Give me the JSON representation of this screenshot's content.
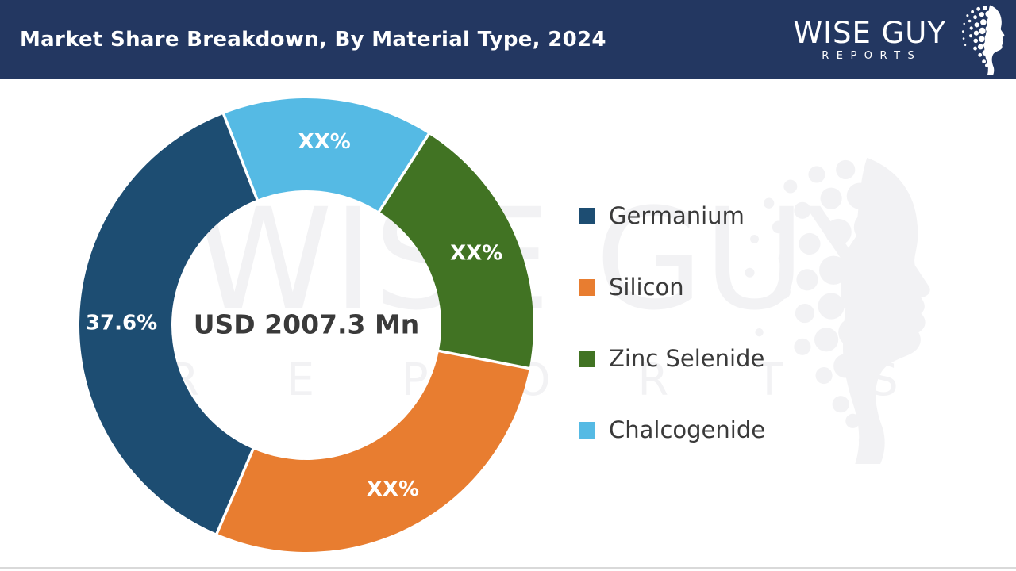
{
  "header": {
    "title": "Market Share Breakdown, By Material Type, 2024",
    "logo": {
      "wordmark": "WISE GUY",
      "subtitle": "REPORTS"
    }
  },
  "watermark": {
    "wordmark": "WISE GUY",
    "subtitle": "R E P O R T S"
  },
  "colors": {
    "header_bg": "#233761",
    "title_text": "#ffffff",
    "center_text": "#3a3a3a",
    "legend_text": "#3a3a3a",
    "watermark": "#f2f2f4",
    "divider": "#d9d9d9"
  },
  "chart_data": {
    "type": "pie",
    "subtype": "donut",
    "title": "Market Share Breakdown, By Material Type, 2024",
    "center_label": "USD 2007.3 Mn",
    "legend_position": "right",
    "start_angle_deg": 111.4,
    "direction": "counterclockwise",
    "segments": [
      {
        "name": "Germanium",
        "label": "37.6%",
        "value_pct": 37.6,
        "color": "#1d4d72"
      },
      {
        "name": "Silicon",
        "label": "XX%",
        "value_pct": 28.4,
        "color": "#e87d30"
      },
      {
        "name": "Zinc Selenide",
        "label": "XX%",
        "value_pct": 19.0,
        "color": "#417323"
      },
      {
        "name": "Chalcogenide",
        "label": "XX%",
        "value_pct": 15.0,
        "color": "#55bae4"
      }
    ]
  }
}
